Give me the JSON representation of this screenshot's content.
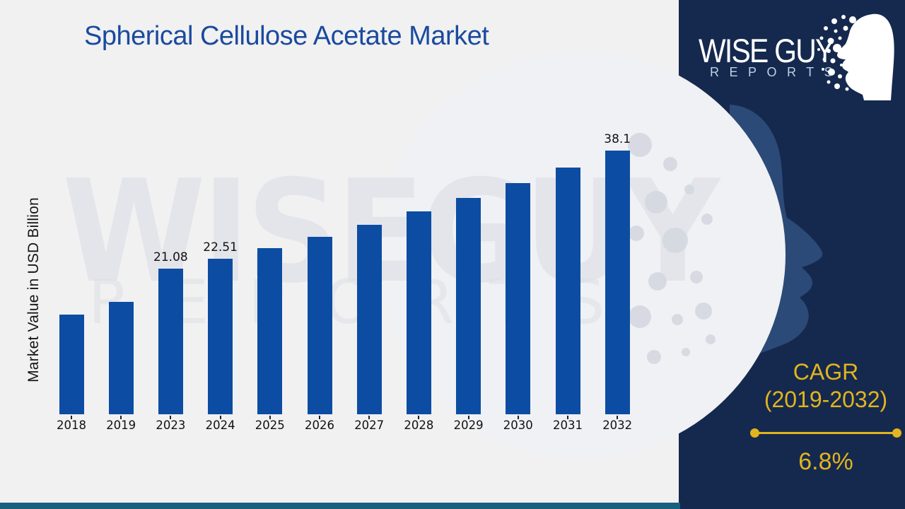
{
  "page": {
    "title": "Spherical Cellulose Acetate Market"
  },
  "logo": {
    "brand_line1": "WISE GUY",
    "brand_line2": "REPORTS"
  },
  "watermark": {
    "line1": "WISEGUY",
    "line2": "REPORTS"
  },
  "cagr": {
    "label": "CAGR",
    "range": "(2019-2032)",
    "value": "6.8%"
  },
  "chart_data": {
    "type": "bar",
    "title": "Spherical Cellulose Acetate Market",
    "xlabel": "",
    "ylabel": "Market Value in USD Billion",
    "categories": [
      "2018",
      "2019",
      "2023",
      "2024",
      "2025",
      "2026",
      "2027",
      "2028",
      "2029",
      "2030",
      "2031",
      "2032"
    ],
    "values": [
      14.4,
      16.2,
      21.08,
      22.51,
      24.04,
      25.67,
      27.42,
      29.28,
      31.27,
      33.4,
      35.67,
      38.1
    ],
    "data_labels": [
      "",
      "",
      "21.08",
      "22.51",
      "",
      "",
      "",
      "",
      "",
      "",
      "",
      "38.1"
    ],
    "ylim": [
      0,
      40
    ],
    "grid": false,
    "legend": null,
    "bar_color": "#0c4da3"
  },
  "colors": {
    "panel_navy": "#15294e",
    "bar_blue": "#0c4da3",
    "title_blue": "#1b4a9e",
    "accent_gold": "#e2b41e",
    "footer_teal": "#1b5f7e"
  }
}
